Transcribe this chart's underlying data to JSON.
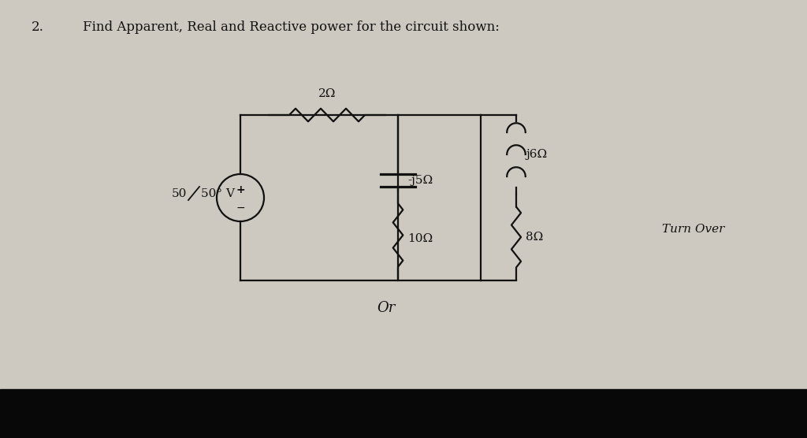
{
  "title_number": "2.",
  "title_text": "Find Apparent, Real and Reactive power for the circuit shown:",
  "source_label_val": "50",
  "source_label_angle": "50° V",
  "r_series": "2Ω",
  "c_label": "-j5Ω",
  "r_mid_label": "10Ω",
  "l_label": "j6Ω",
  "r_right_label": "8Ω",
  "or_text": "Or",
  "turn_over_text": "Turn Over",
  "paper_color": "#cdc9c0",
  "line_color": "#111111",
  "text_color": "#111111",
  "bottom_black_color": "#080808",
  "lw": 1.6
}
